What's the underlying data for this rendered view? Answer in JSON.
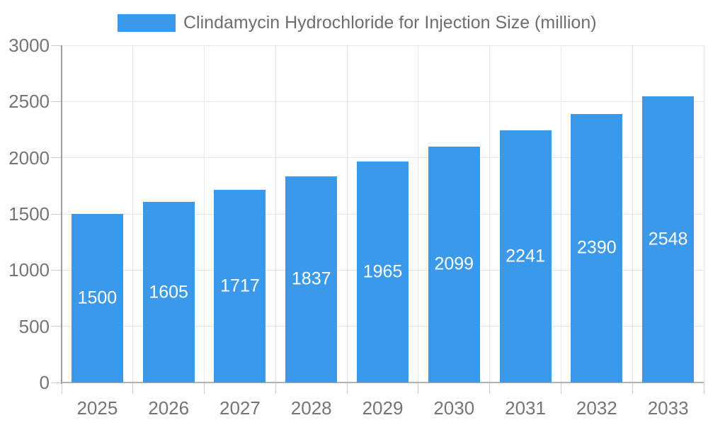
{
  "legend": {
    "label": "Clindamycin Hydrochloride for Injection Size (million)"
  },
  "colors": {
    "bar": "#3B99EC",
    "grid_h": "#E6E6E6",
    "grid_v": "#E9E9E9",
    "axis_line_x": "#B0B0B0",
    "axis_line_y": "#9E9E9E",
    "tick": "#CCCCCC",
    "axis_text": "#757575",
    "legend_text": "#6E6E6E",
    "value_label": "#FFFFFF",
    "background": "#FFFFFF"
  },
  "chart_data": {
    "type": "bar",
    "title": "Clindamycin Hydrochloride for Injection Size (million)",
    "series_name": "Clindamycin Hydrochloride for Injection Size (million)",
    "categories": [
      "2025",
      "2026",
      "2027",
      "2028",
      "2029",
      "2030",
      "2031",
      "2032",
      "2033"
    ],
    "values": [
      1500,
      1605,
      1717,
      1837,
      1965,
      2099,
      2241,
      2390,
      2548
    ],
    "xlabel": "",
    "ylabel": "",
    "ylim": [
      0,
      3000
    ],
    "y_ticks": [
      0,
      500,
      1000,
      1500,
      2000,
      2500,
      3000
    ],
    "grid": true,
    "legend_position": "top",
    "value_labels": "inside-center"
  }
}
